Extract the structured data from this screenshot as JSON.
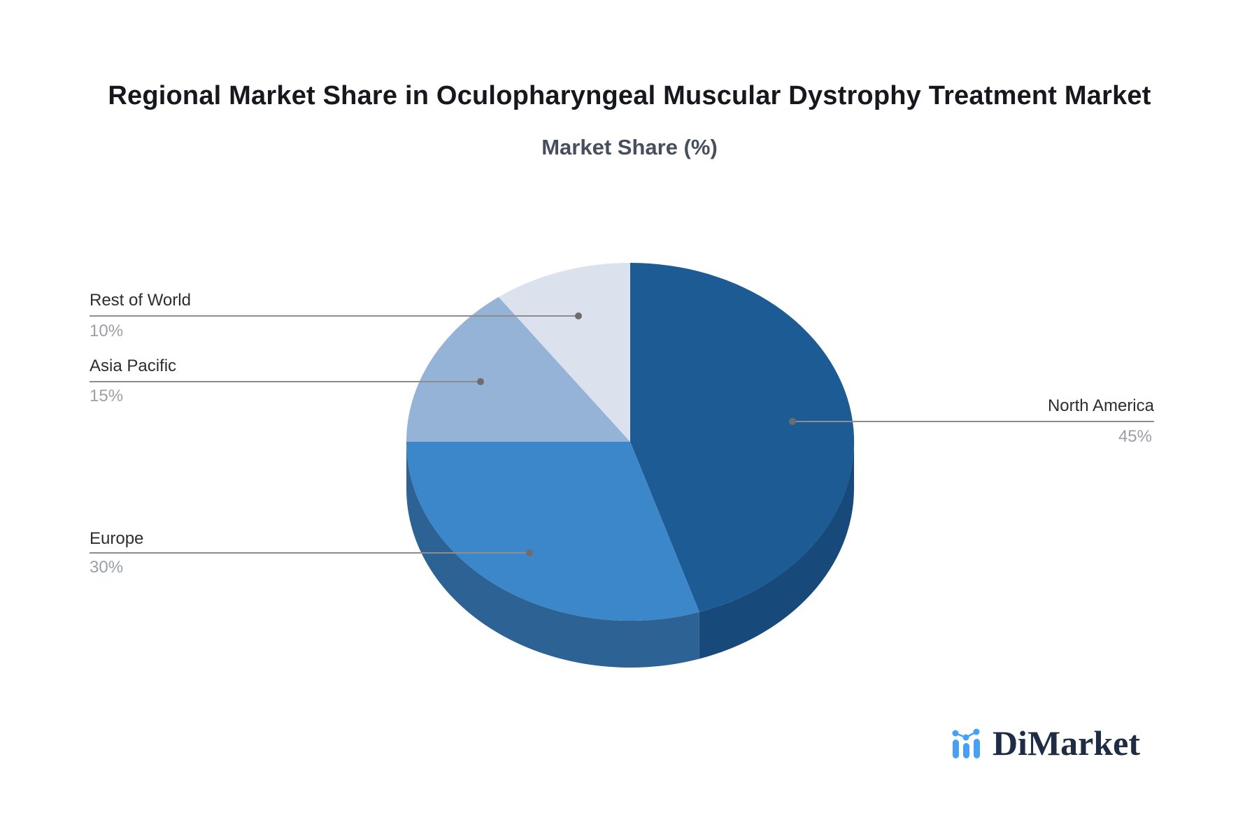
{
  "chart_data": {
    "type": "pie",
    "style": "3d",
    "title": "Regional Market Share in Oculopharyngeal Muscular Dystrophy Treatment Market",
    "subtitle": "Market Share (%)",
    "unit": "%",
    "labels": [
      "North America",
      "Europe",
      "Asia Pacific",
      "Rest of World"
    ],
    "values": [
      45,
      30,
      15,
      10
    ],
    "pct_labels": [
      "45%",
      "30%",
      "15%",
      "10%"
    ],
    "start_angle_deg": 0,
    "direction": "clockwise",
    "legend": "callout-labels",
    "colors": {
      "slices": [
        "#1d5b94",
        "#3c87c9",
        "#94b3d7",
        "#dbe2ee"
      ],
      "slice_rims": [
        "#174a7a",
        "#2d6394",
        "#7ea3cc",
        "#c3cfe2"
      ],
      "callout_line": "#8d8d8d",
      "callout_dot": "#6d6d6d"
    }
  },
  "logo": {
    "text": "DiMarket"
  }
}
